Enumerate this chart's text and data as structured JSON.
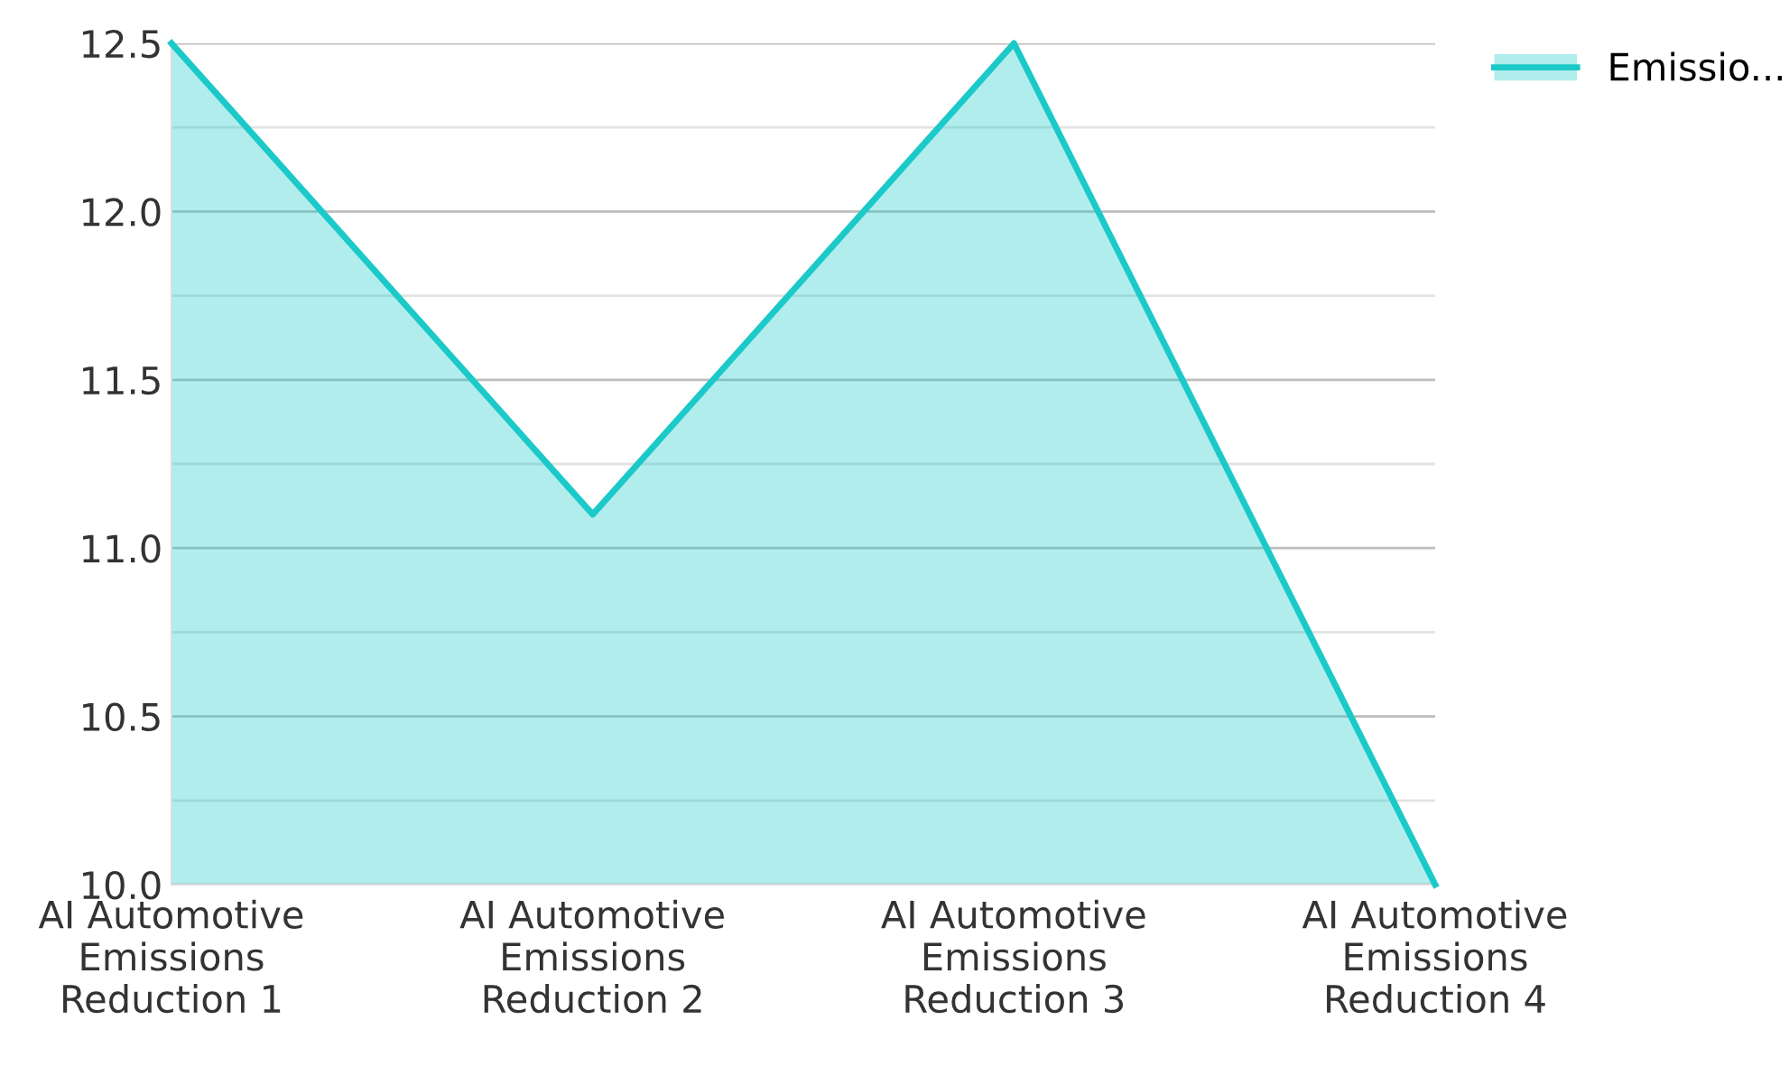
{
  "chart_data": {
    "type": "area",
    "categories": [
      "AI Automotive\nEmissions\nReduction 1",
      "AI Automotive\nEmissions\nReduction 2",
      "AI Automotive\nEmissions\nReduction 3",
      "AI Automotive\nEmissions\nReduction 4"
    ],
    "series": [
      {
        "name": "Emissio...",
        "color": "#1cc9c9",
        "values": [
          12.5,
          11.1,
          12.5,
          10.0
        ]
      }
    ],
    "ylim": [
      10.0,
      12.5
    ],
    "yticks": [
      {
        "value": 10.0,
        "label": "10.0"
      },
      {
        "value": 10.25,
        "label": null
      },
      {
        "value": 10.5,
        "label": "10.5"
      },
      {
        "value": 10.75,
        "label": null
      },
      {
        "value": 11.0,
        "label": "11.0"
      },
      {
        "value": 11.25,
        "label": null
      },
      {
        "value": 11.5,
        "label": "11.5"
      },
      {
        "value": 11.75,
        "label": null
      },
      {
        "value": 12.0,
        "label": "12.0"
      },
      {
        "value": 12.25,
        "label": null
      },
      {
        "value": 12.5,
        "label": "12.5"
      }
    ],
    "grid": "y",
    "legend": "top right"
  }
}
